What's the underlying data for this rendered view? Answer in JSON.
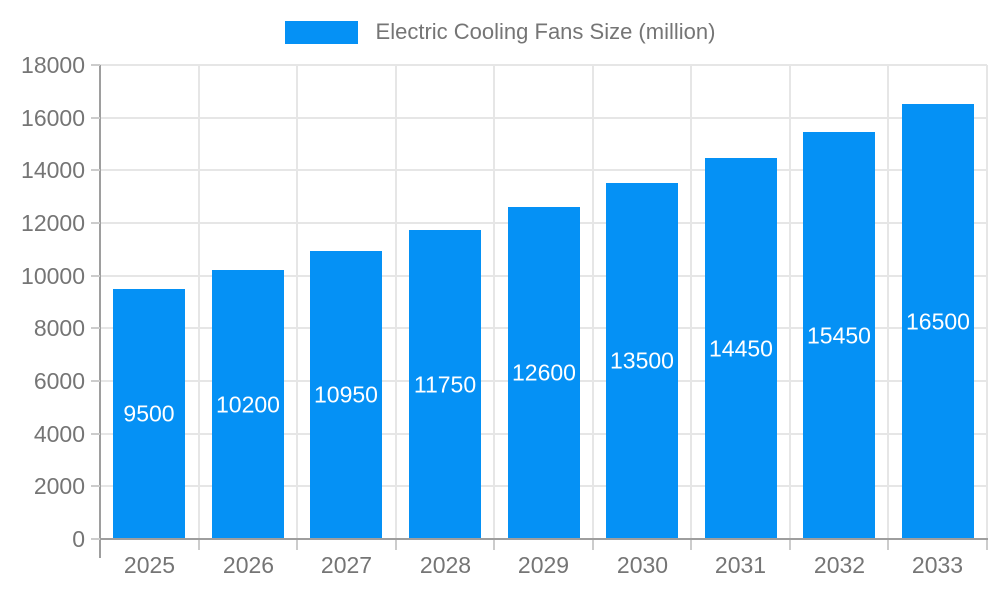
{
  "legend": {
    "label": "Electric Cooling Fans Size (million)"
  },
  "colors": {
    "bar": "#0591f5",
    "axis_line": "#9e9e9e",
    "grid_line": "#e6e6e6",
    "tick": "#cccccc",
    "axis_text": "#757575",
    "bar_label_text": "#ffffff",
    "background": "#ffffff"
  },
  "chart_data": {
    "type": "bar",
    "title": "Electric Cooling Fans Size (million)",
    "categories": [
      "2025",
      "2026",
      "2027",
      "2028",
      "2029",
      "2030",
      "2031",
      "2032",
      "2033"
    ],
    "values": [
      9500,
      10200,
      10950,
      11750,
      12600,
      13500,
      14450,
      15450,
      16500
    ],
    "xlabel": "",
    "ylabel": "",
    "ylim": [
      0,
      18000
    ],
    "ytick_step": 2000,
    "yticks": [
      0,
      2000,
      4000,
      6000,
      8000,
      10000,
      12000,
      14000,
      16000,
      18000
    ],
    "grid": true,
    "legend_position": "top",
    "bar_label_position": "inside-middle"
  }
}
